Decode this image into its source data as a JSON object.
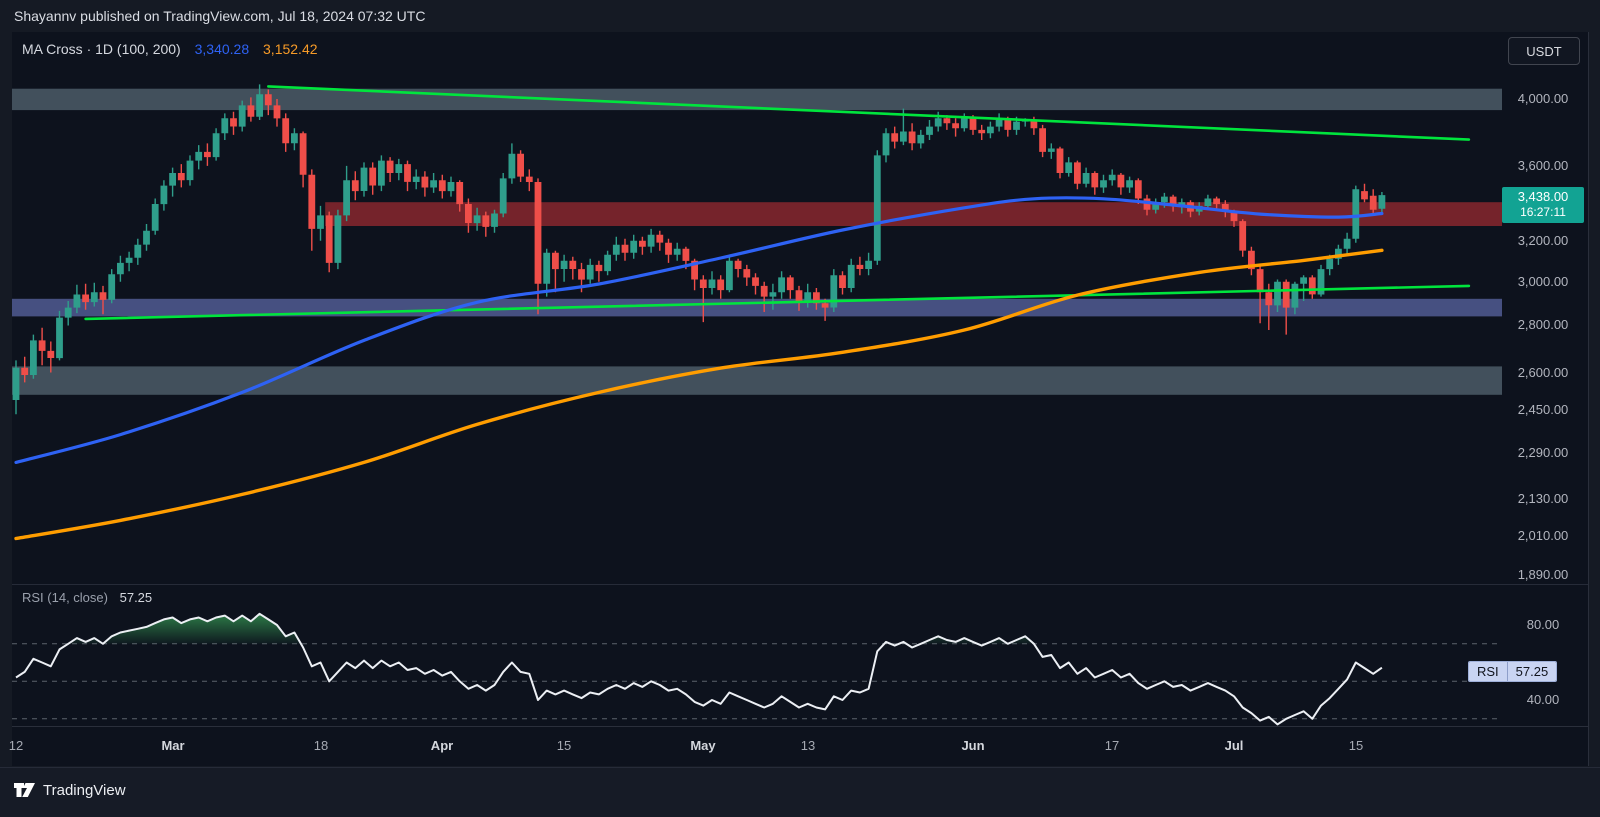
{
  "header": {
    "text": "Shayannv published on TradingView.com, Jul 18, 2024 07:32 UTC"
  },
  "title": {
    "text": "MA Cross · 1D (100, 200)",
    "ma100_value": "3,340.28",
    "ma200_value": "3,152.42"
  },
  "toolbar": {
    "symbol_button": "USDT"
  },
  "price_scale": {
    "labels": [
      {
        "text": "4,000.00",
        "price": 4000
      },
      {
        "text": "3,600.00",
        "price": 3600
      },
      {
        "text": "3,200.00",
        "price": 3200
      },
      {
        "text": "3,000.00",
        "price": 3000
      },
      {
        "text": "2,800.00",
        "price": 2800
      },
      {
        "text": "2,600.00",
        "price": 2600
      },
      {
        "text": "2,450.00",
        "price": 2450
      },
      {
        "text": "2,290.00",
        "price": 2290
      },
      {
        "text": "2,130.00",
        "price": 2130
      },
      {
        "text": "2,010.00",
        "price": 2010
      },
      {
        "text": "1,890.00",
        "price": 1890
      }
    ],
    "last_price": {
      "text": "3,438.00",
      "countdown": "16:27:11",
      "price": 3438
    }
  },
  "time_scale": {
    "labels": [
      {
        "text": "12",
        "index": 0,
        "major": false
      },
      {
        "text": "Mar",
        "index": 18,
        "major": true
      },
      {
        "text": "18",
        "index": 35,
        "major": false
      },
      {
        "text": "Apr",
        "index": 49,
        "major": true
      },
      {
        "text": "15",
        "index": 63,
        "major": false
      },
      {
        "text": "May",
        "index": 79,
        "major": true
      },
      {
        "text": "13",
        "index": 91,
        "major": false
      },
      {
        "text": "Jun",
        "index": 110,
        "major": true
      },
      {
        "text": "17",
        "index": 126,
        "major": false
      },
      {
        "text": "Jul",
        "index": 140,
        "major": true
      },
      {
        "text": "15",
        "index": 154,
        "major": false
      }
    ]
  },
  "rsi_pane": {
    "label": "RSI (14, close)",
    "value": "57.25",
    "badge": {
      "label": "RSI",
      "value": "57.25"
    },
    "scale_labels": [
      {
        "text": "80.00",
        "value": 80
      },
      {
        "text": "40.00",
        "value": 40
      }
    ],
    "dashed_levels": [
      70,
      50,
      30
    ]
  },
  "footer": {
    "brand": "TradingView"
  },
  "colors": {
    "up": "#2f9e8b",
    "down": "#ef4e49",
    "ma_fast": "#2e62f4",
    "ma_slow": "#ff9d00",
    "trendline": "#00e53d",
    "last_price_bg": "#12a393",
    "zone_gray": "#42505c",
    "zone_red": "#75232b",
    "zone_blue": "#465081",
    "rsi_line": "#eceff4",
    "rsi_fill": "#3bab5a",
    "rsi_dash": "#6b707b",
    "axis_text": "#b2b5be"
  },
  "chart_data": {
    "type": "candlestick+rsi",
    "title": "MA Cross · 1D (100, 200)",
    "quote": "USDT",
    "interval": "1D",
    "x_axis": "daily candles, Feb 12 2024 – Jul 18 2024",
    "y_axis": "price USDT, log scale",
    "ylim": [
      1850,
      4200
    ],
    "candles": [
      [
        2490,
        2650,
        2435,
        2620
      ],
      [
        2620,
        2665,
        2560,
        2590
      ],
      [
        2590,
        2760,
        2575,
        2735
      ],
      [
        2735,
        2790,
        2630,
        2690
      ],
      [
        2690,
        2730,
        2600,
        2660
      ],
      [
        2660,
        2865,
        2650,
        2835
      ],
      [
        2835,
        2910,
        2800,
        2880
      ],
      [
        2880,
        2985,
        2855,
        2940
      ],
      [
        2940,
        2990,
        2870,
        2905
      ],
      [
        2905,
        2995,
        2885,
        2950
      ],
      [
        2950,
        2980,
        2850,
        2915
      ],
      [
        2915,
        3060,
        2900,
        3035
      ],
      [
        3035,
        3125,
        3000,
        3090
      ],
      [
        3090,
        3145,
        3050,
        3115
      ],
      [
        3115,
        3210,
        3080,
        3180
      ],
      [
        3180,
        3285,
        3150,
        3250
      ],
      [
        3250,
        3420,
        3230,
        3390
      ],
      [
        3390,
        3520,
        3355,
        3490
      ],
      [
        3490,
        3590,
        3430,
        3560
      ],
      [
        3560,
        3610,
        3480,
        3520
      ],
      [
        3520,
        3660,
        3490,
        3630
      ],
      [
        3630,
        3720,
        3580,
        3680
      ],
      [
        3680,
        3730,
        3600,
        3650
      ],
      [
        3650,
        3820,
        3630,
        3790
      ],
      [
        3790,
        3910,
        3750,
        3880
      ],
      [
        3880,
        3920,
        3780,
        3830
      ],
      [
        3830,
        3990,
        3800,
        3960
      ],
      [
        3960,
        4010,
        3860,
        3890
      ],
      [
        3890,
        4093,
        3870,
        4030
      ],
      [
        4030,
        4060,
        3900,
        3960
      ],
      [
        3960,
        4000,
        3830,
        3880
      ],
      [
        3880,
        3910,
        3680,
        3730
      ],
      [
        3730,
        3820,
        3690,
        3790
      ],
      [
        3790,
        3800,
        3480,
        3550
      ],
      [
        3550,
        3580,
        3150,
        3260
      ],
      [
        3260,
        3380,
        3200,
        3330
      ],
      [
        3330,
        3350,
        3045,
        3090
      ],
      [
        3090,
        3360,
        3060,
        3330
      ],
      [
        3330,
        3600,
        3300,
        3520
      ],
      [
        3520,
        3570,
        3410,
        3460
      ],
      [
        3460,
        3620,
        3430,
        3590
      ],
      [
        3590,
        3620,
        3440,
        3490
      ],
      [
        3490,
        3660,
        3460,
        3630
      ],
      [
        3630,
        3650,
        3510,
        3560
      ],
      [
        3560,
        3640,
        3520,
        3610
      ],
      [
        3610,
        3630,
        3460,
        3510
      ],
      [
        3510,
        3580,
        3470,
        3540
      ],
      [
        3540,
        3570,
        3430,
        3480
      ],
      [
        3480,
        3560,
        3450,
        3520
      ],
      [
        3520,
        3550,
        3420,
        3460
      ],
      [
        3460,
        3540,
        3430,
        3510
      ],
      [
        3510,
        3520,
        3350,
        3390
      ],
      [
        3390,
        3420,
        3240,
        3290
      ],
      [
        3290,
        3370,
        3250,
        3330
      ],
      [
        3330,
        3350,
        3220,
        3270
      ],
      [
        3270,
        3360,
        3240,
        3340
      ],
      [
        3340,
        3560,
        3320,
        3530
      ],
      [
        3530,
        3730,
        3500,
        3670
      ],
      [
        3670,
        3690,
        3510,
        3540
      ],
      [
        3540,
        3580,
        3460,
        3510
      ],
      [
        3510,
        3530,
        2850,
        2990
      ],
      [
        2990,
        3160,
        2930,
        3140
      ],
      [
        3140,
        3150,
        2950,
        3060
      ],
      [
        3060,
        3130,
        3000,
        3100
      ],
      [
        3100,
        3120,
        3010,
        3060
      ],
      [
        3060,
        3090,
        2950,
        3010
      ],
      [
        3010,
        3110,
        2990,
        3080
      ],
      [
        3080,
        3100,
        3000,
        3050
      ],
      [
        3050,
        3150,
        3030,
        3130
      ],
      [
        3130,
        3220,
        3100,
        3180
      ],
      [
        3180,
        3210,
        3100,
        3140
      ],
      [
        3140,
        3230,
        3110,
        3200
      ],
      [
        3200,
        3220,
        3130,
        3170
      ],
      [
        3170,
        3260,
        3140,
        3230
      ],
      [
        3230,
        3250,
        3150,
        3190
      ],
      [
        3190,
        3210,
        3090,
        3130
      ],
      [
        3130,
        3190,
        3100,
        3160
      ],
      [
        3160,
        3170,
        3060,
        3100
      ],
      [
        3100,
        3110,
        2960,
        3010
      ],
      [
        3010,
        3030,
        2815,
        2970
      ],
      [
        2970,
        3050,
        2940,
        3010
      ],
      [
        3010,
        3030,
        2920,
        2960
      ],
      [
        2960,
        3130,
        2950,
        3100
      ],
      [
        3100,
        3110,
        3020,
        3060
      ],
      [
        3060,
        3080,
        2980,
        3020
      ],
      [
        3020,
        3040,
        2940,
        2980
      ],
      [
        2980,
        3000,
        2860,
        2930
      ],
      [
        2930,
        2990,
        2870,
        2950
      ],
      [
        2950,
        3050,
        2920,
        3020
      ],
      [
        3020,
        3030,
        2920,
        2960
      ],
      [
        2960,
        2980,
        2865,
        2910
      ],
      [
        2910,
        2990,
        2880,
        2950
      ],
      [
        2950,
        2970,
        2870,
        2900
      ],
      [
        2900,
        2920,
        2820,
        2880
      ],
      [
        2880,
        3060,
        2860,
        3030
      ],
      [
        3030,
        3050,
        2940,
        2970
      ],
      [
        2970,
        3110,
        2950,
        3080
      ],
      [
        3080,
        3120,
        3030,
        3060
      ],
      [
        3060,
        3140,
        3030,
        3100
      ],
      [
        3100,
        3690,
        3080,
        3660
      ],
      [
        3660,
        3820,
        3620,
        3790
      ],
      [
        3790,
        3830,
        3700,
        3740
      ],
      [
        3740,
        3940,
        3720,
        3800
      ],
      [
        3800,
        3850,
        3690,
        3730
      ],
      [
        3730,
        3810,
        3700,
        3780
      ],
      [
        3780,
        3870,
        3750,
        3830
      ],
      [
        3830,
        3920,
        3800,
        3880
      ],
      [
        3880,
        3900,
        3810,
        3850
      ],
      [
        3850,
        3880,
        3770,
        3820
      ],
      [
        3820,
        3910,
        3800,
        3880
      ],
      [
        3880,
        3900,
        3780,
        3810
      ],
      [
        3810,
        3840,
        3750,
        3790
      ],
      [
        3790,
        3860,
        3760,
        3830
      ],
      [
        3830,
        3910,
        3800,
        3870
      ],
      [
        3870,
        3890,
        3770,
        3810
      ],
      [
        3810,
        3890,
        3780,
        3860
      ],
      [
        3860,
        3880,
        3830,
        3870
      ],
      [
        3870,
        3890,
        3780,
        3820
      ],
      [
        3820,
        3840,
        3650,
        3680
      ],
      [
        3680,
        3730,
        3640,
        3700
      ],
      [
        3700,
        3710,
        3530,
        3560
      ],
      [
        3560,
        3650,
        3540,
        3620
      ],
      [
        3620,
        3630,
        3470,
        3500
      ],
      [
        3500,
        3590,
        3480,
        3560
      ],
      [
        3560,
        3570,
        3440,
        3480
      ],
      [
        3480,
        3550,
        3450,
        3520
      ],
      [
        3520,
        3580,
        3490,
        3550
      ],
      [
        3550,
        3560,
        3440,
        3480
      ],
      [
        3480,
        3540,
        3450,
        3520
      ],
      [
        3520,
        3530,
        3390,
        3420
      ],
      [
        3420,
        3440,
        3330,
        3360
      ],
      [
        3360,
        3420,
        3340,
        3400
      ],
      [
        3400,
        3450,
        3370,
        3430
      ],
      [
        3430,
        3440,
        3350,
        3380
      ],
      [
        3380,
        3420,
        3340,
        3400
      ],
      [
        3400,
        3410,
        3320,
        3350
      ],
      [
        3350,
        3400,
        3330,
        3380
      ],
      [
        3380,
        3440,
        3360,
        3420
      ],
      [
        3420,
        3430,
        3360,
        3390
      ],
      [
        3390,
        3410,
        3320,
        3350
      ],
      [
        3350,
        3360,
        3270,
        3300
      ],
      [
        3300,
        3310,
        3120,
        3150
      ],
      [
        3150,
        3170,
        3030,
        3060
      ],
      [
        3060,
        3080,
        2810,
        2950
      ],
      [
        2950,
        2990,
        2780,
        2890
      ],
      [
        2890,
        3010,
        2860,
        3000
      ],
      [
        3000,
        3010,
        2760,
        2880
      ],
      [
        2880,
        3000,
        2850,
        2990
      ],
      [
        2990,
        3030,
        2910,
        3020
      ],
      [
        3020,
        3030,
        2920,
        2940
      ],
      [
        2940,
        3080,
        2930,
        3060
      ],
      [
        3060,
        3130,
        3030,
        3110
      ],
      [
        3110,
        3180,
        3080,
        3160
      ],
      [
        3160,
        3240,
        3130,
        3210
      ],
      [
        3210,
        3490,
        3190,
        3470
      ],
      [
        3460,
        3500,
        3400,
        3415
      ],
      [
        3435,
        3470,
        3340,
        3360
      ],
      [
        3365,
        3455,
        3345,
        3438
      ]
    ],
    "ma100_anchors": [
      [
        0,
        2257
      ],
      [
        12,
        2358
      ],
      [
        26,
        2520
      ],
      [
        40,
        2735
      ],
      [
        53,
        2904
      ],
      [
        67,
        2989
      ],
      [
        81,
        3114
      ],
      [
        95,
        3254
      ],
      [
        109,
        3370
      ],
      [
        117,
        3418
      ],
      [
        125,
        3418
      ],
      [
        134,
        3380
      ],
      [
        143,
        3337
      ],
      [
        152,
        3321
      ],
      [
        157,
        3340
      ]
    ],
    "ma200_anchors": [
      [
        0,
        2002
      ],
      [
        12,
        2060
      ],
      [
        26,
        2146
      ],
      [
        40,
        2257
      ],
      [
        53,
        2396
      ],
      [
        67,
        2520
      ],
      [
        81,
        2618
      ],
      [
        95,
        2684
      ],
      [
        109,
        2780
      ],
      [
        122,
        2937
      ],
      [
        136,
        3044
      ],
      [
        148,
        3102
      ],
      [
        157,
        3152
      ]
    ],
    "ma100_last": 3340.28,
    "ma200_last": 3152.42,
    "zones": [
      {
        "name": "upper-resistance-zone",
        "price_from": 3930,
        "price_to": 4065,
        "start_index": 0,
        "color_key": "zone_gray"
      },
      {
        "name": "mid-resistance-zone",
        "price_from": 3275,
        "price_to": 3400,
        "start_index": 36,
        "color_key": "zone_red"
      },
      {
        "name": "upper-support-zone",
        "price_from": 2840,
        "price_to": 2920,
        "start_index": 0,
        "color_key": "zone_blue"
      },
      {
        "name": "lower-support-zone",
        "price_from": 2510,
        "price_to": 2625,
        "start_index": 0,
        "color_key": "zone_gray"
      }
    ],
    "trendlines": [
      {
        "name": "descending-resistance-trendline",
        "from": [
          29,
          4080
        ],
        "to": [
          167,
          3752
        ]
      },
      {
        "name": "ascending-support-trendline",
        "from": [
          8,
          2829
        ],
        "to": [
          167,
          2980
        ]
      }
    ],
    "rsi": {
      "period": 14,
      "source": "close",
      "last": 57.25,
      "overbought_fill_above": 70,
      "values": [
        52,
        55,
        62,
        60,
        58,
        67,
        70,
        73,
        71,
        73,
        70,
        74,
        76,
        77,
        78,
        79,
        81,
        83,
        84,
        81,
        83,
        84,
        82,
        84,
        85,
        82,
        85,
        82,
        86,
        83,
        80,
        74,
        76,
        68,
        58,
        60,
        50,
        55,
        60,
        57,
        61,
        57,
        61,
        58,
        60,
        56,
        57,
        54,
        56,
        53,
        55,
        50,
        46,
        48,
        45,
        48,
        55,
        60,
        55,
        54,
        40,
        45,
        43,
        45,
        43,
        41,
        44,
        43,
        46,
        48,
        46,
        49,
        47,
        50,
        48,
        45,
        46,
        43,
        39,
        37,
        40,
        38,
        44,
        42,
        40,
        38,
        36,
        38,
        42,
        39,
        36,
        38,
        36,
        35,
        42,
        40,
        45,
        44,
        46,
        66,
        71,
        69,
        71,
        68,
        70,
        72,
        74,
        72,
        71,
        73,
        71,
        69,
        71,
        73,
        70,
        72,
        74,
        70,
        63,
        64,
        57,
        60,
        54,
        57,
        52,
        54,
        56,
        52,
        54,
        49,
        46,
        48,
        50,
        47,
        48,
        45,
        47,
        49,
        47,
        45,
        42,
        36,
        33,
        29,
        31,
        27,
        30,
        32,
        34,
        30,
        37,
        41,
        46,
        51,
        60,
        57,
        54,
        57.25
      ]
    }
  }
}
